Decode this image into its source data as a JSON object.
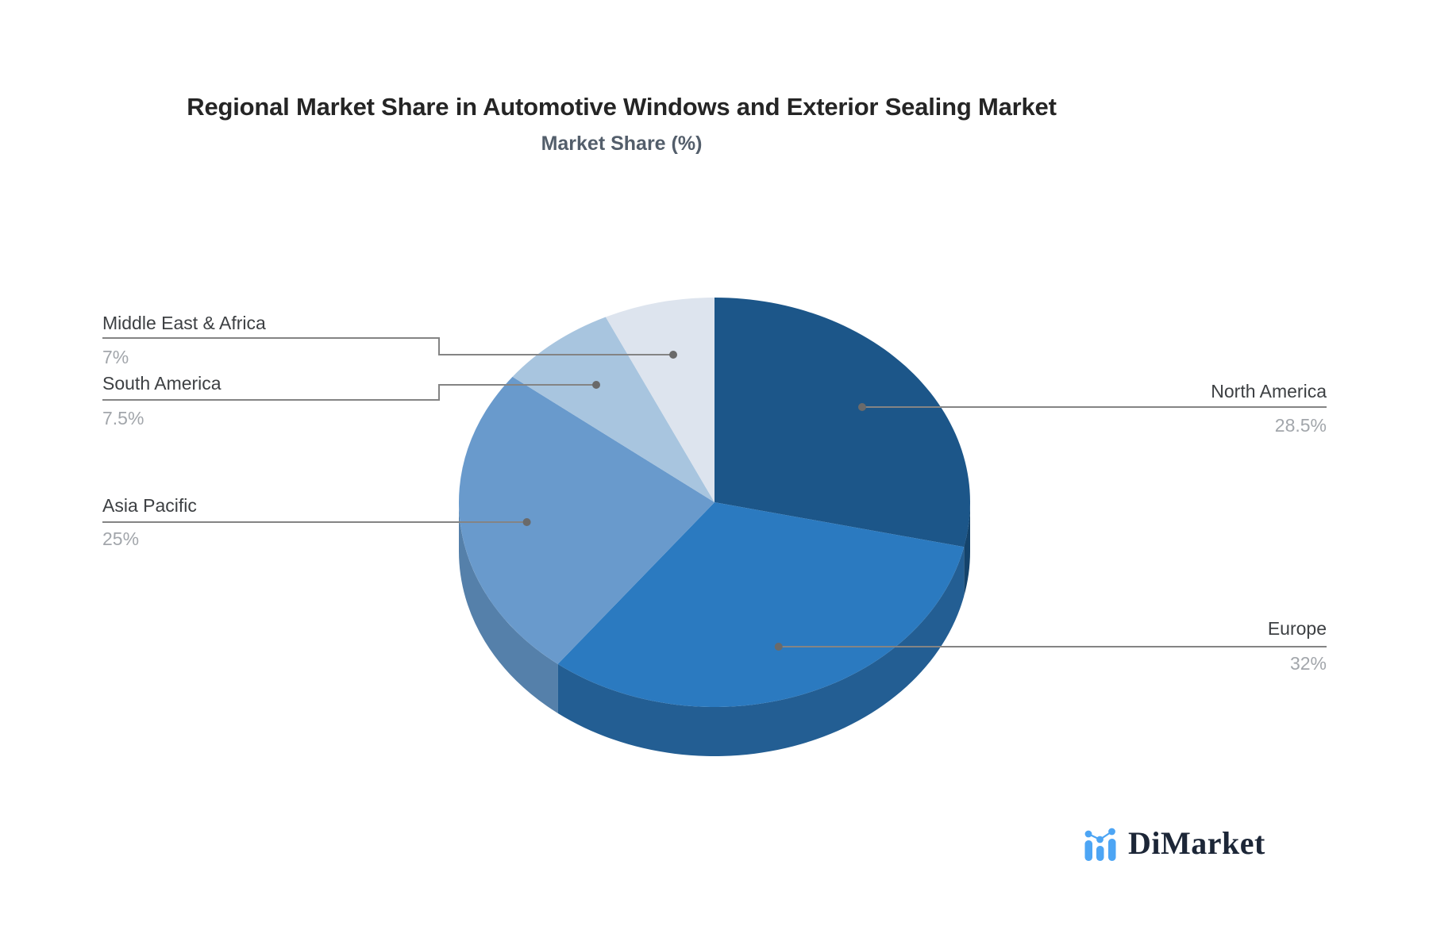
{
  "title": "Regional Market Share in Automotive Windows and Exterior Sealing Market",
  "subtitle": "Market Share (%)",
  "logo": {
    "text": "DiMarket",
    "icon": "bar-line-chart-icon",
    "icon_color": "#4da5f4",
    "text_color": "#1c2637"
  },
  "chart_data": {
    "type": "pie",
    "title": "Regional Market Share in Automotive Windows and Exterior Sealing Market",
    "subtitle": "Market Share (%)",
    "unit": "%",
    "style": "3d-pie",
    "direction": "clockwise",
    "start_angle": "12 o'clock",
    "legend_position": "none",
    "label_style": "leader-line callouts, name above line, value below line",
    "slices": [
      {
        "label": "North America",
        "value": 28.5,
        "display": "28.5%",
        "color": "#1c5689",
        "side_color": "#14436b"
      },
      {
        "label": "Europe",
        "value": 32,
        "display": "32%",
        "color": "#2b7ac0",
        "side_color": "#235e93"
      },
      {
        "label": "Asia Pacific",
        "value": 25,
        "display": "25%",
        "color": "#699acc",
        "side_color": "#5580aa"
      },
      {
        "label": "South America",
        "value": 7.5,
        "display": "7.5%",
        "color": "#a8c5df",
        "side_color": "#8aa9c4"
      },
      {
        "label": "Middle East & Africa",
        "value": 7,
        "display": "7%",
        "color": "#dde4ee",
        "side_color": "#bcc8d6"
      }
    ],
    "leader_line_color": "#848484",
    "leader_dot_color": "#6a6a6a"
  }
}
